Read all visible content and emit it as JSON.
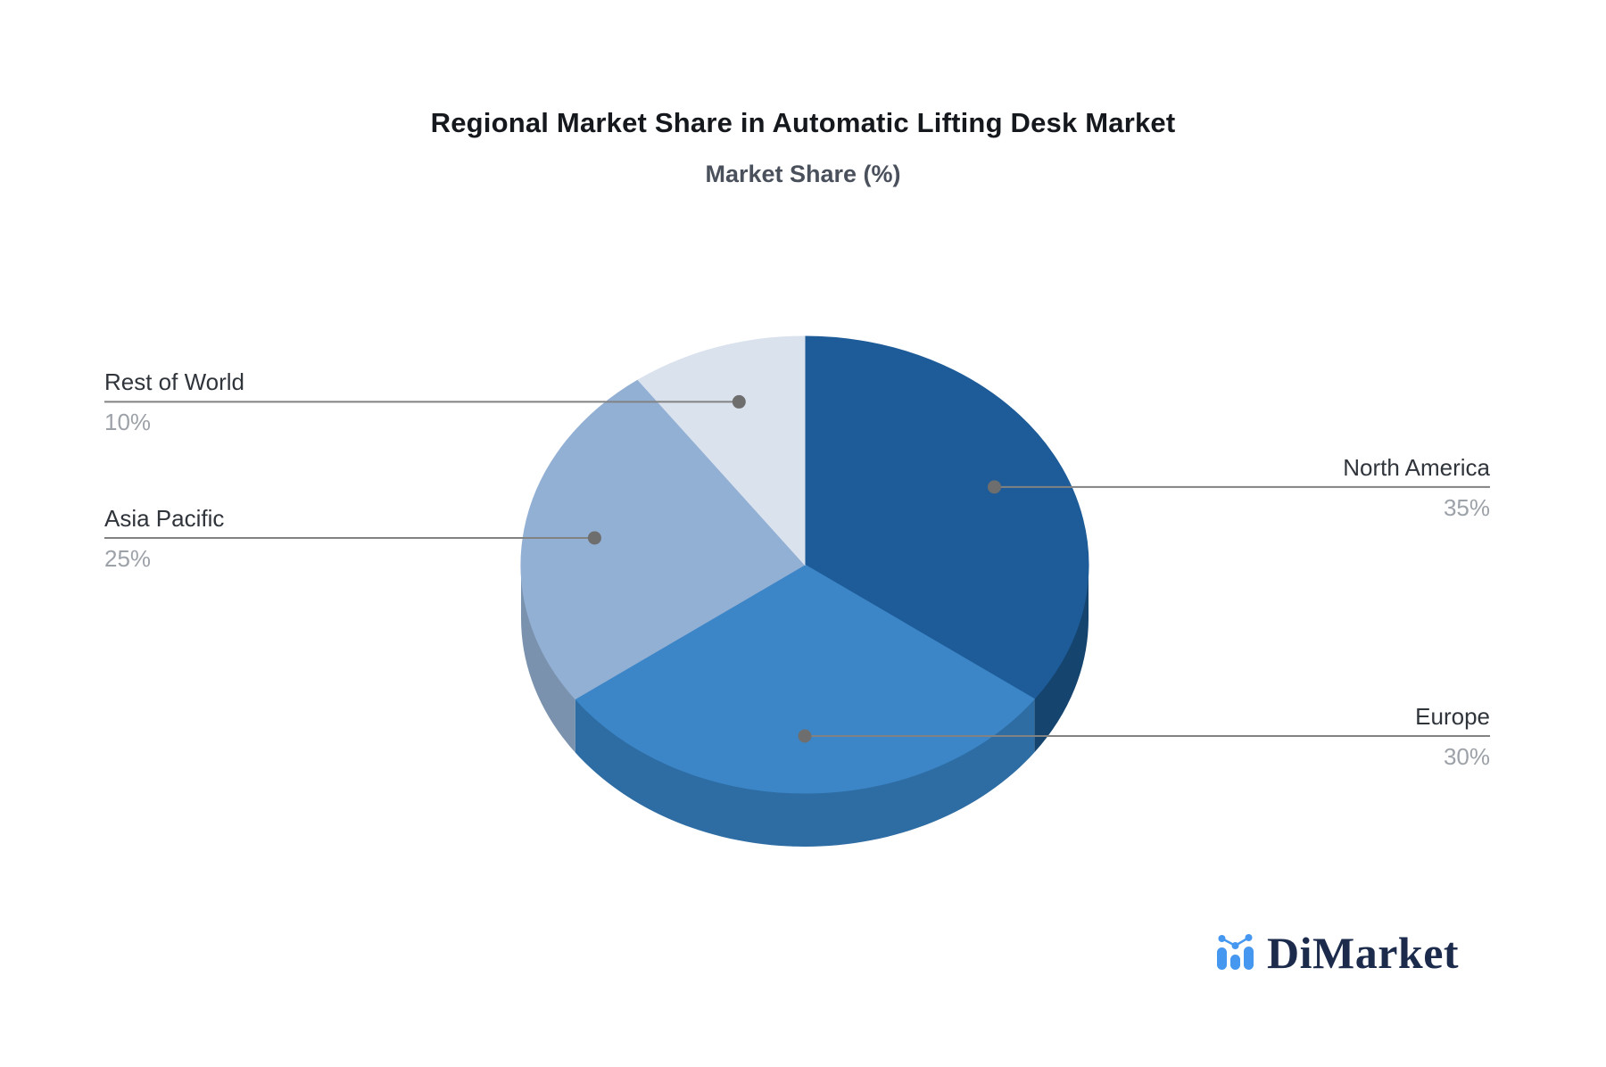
{
  "title": "Regional Market Share in Automatic Lifting Desk Market",
  "subtitle": "Market Share (%)",
  "brand": {
    "name": "DiMarket"
  },
  "chart_data": {
    "type": "pie",
    "title": "Regional Market Share in Automatic Lifting Desk Market",
    "subtitle": "Market Share (%)",
    "unit": "%",
    "style": "3d-pie",
    "start_angle": "12-o-clock",
    "direction": "clockwise",
    "legend": "none",
    "categories": [
      "North America",
      "Europe",
      "Asia Pacific",
      "Rest of World"
    ],
    "values": [
      35,
      30,
      25,
      10
    ],
    "slices": [
      {
        "label": "North America",
        "value": 35,
        "value_text": "35%",
        "color": "#1E5C99",
        "side_color": "#15446F",
        "label_side": "right"
      },
      {
        "label": "Europe",
        "value": 30,
        "value_text": "30%",
        "color": "#3C86C7",
        "side_color": "#2E6DA4",
        "label_side": "right"
      },
      {
        "label": "Asia Pacific",
        "value": 25,
        "value_text": "25%",
        "color": "#92AFD4",
        "side_color": "#7A92AD",
        "label_side": "left"
      },
      {
        "label": "Rest of World",
        "value": 10,
        "value_text": "10%",
        "color": "#DAE2EE",
        "side_color": "#B9C4D3",
        "label_side": "left"
      }
    ],
    "leader_line_color": "#828282",
    "leader_dot_color": "#6e6e6e",
    "label_name_color": "#30343b",
    "label_value_color": "#9da2a9"
  }
}
